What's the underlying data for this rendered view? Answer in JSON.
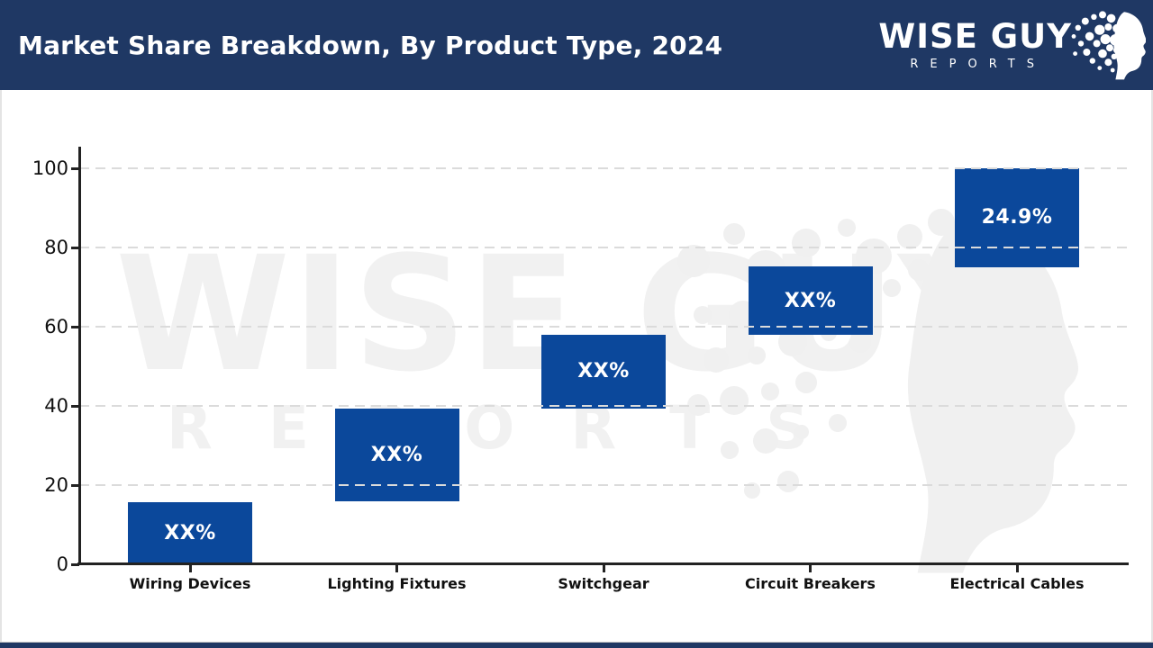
{
  "header": {
    "title": "Market Share Breakdown, By Product Type, 2024",
    "logo": {
      "line1": "WISE GUY",
      "line2": "REPORTS"
    }
  },
  "watermark": {
    "line1": "WISE GUY",
    "line2": "REPORTS"
  },
  "colors": {
    "header_bg": "#1F3864",
    "footer_bg": "#1F3864",
    "bar": "#0B489B",
    "bar_label": "#FFFFFF",
    "gridline": "#DBDBDB",
    "axis": "#222222",
    "watermark": "#F1F1F1"
  },
  "chart_data": {
    "type": "bar",
    "subtype": "floating-stacked-waterfall",
    "title": "Market Share Breakdown, By Product Type, 2024",
    "categories": [
      "Wiring Devices",
      "Lighting Fixtures",
      "Switchgear",
      "Circuit Breakers",
      "Electrical Cables"
    ],
    "segments": [
      {
        "category": "Wiring Devices",
        "start": 0,
        "end": 15.7,
        "label": "XX%"
      },
      {
        "category": "Lighting Fixtures",
        "start": 16,
        "end": 39.3,
        "label": "XX%"
      },
      {
        "category": "Switchgear",
        "start": 39.4,
        "end": 57.9,
        "label": "XX%"
      },
      {
        "category": "Circuit Breakers",
        "start": 57.9,
        "end": 75.2,
        "label": "XX%"
      },
      {
        "category": "Electrical Cables",
        "start": 75.1,
        "end": 100,
        "label": "24.9%"
      }
    ],
    "xlabel": "",
    "ylabel": "",
    "ylim": [
      0,
      100
    ],
    "yticks": [
      0,
      20,
      40,
      60,
      80,
      100
    ],
    "grid": "horizontal-dashed",
    "legend": false
  }
}
